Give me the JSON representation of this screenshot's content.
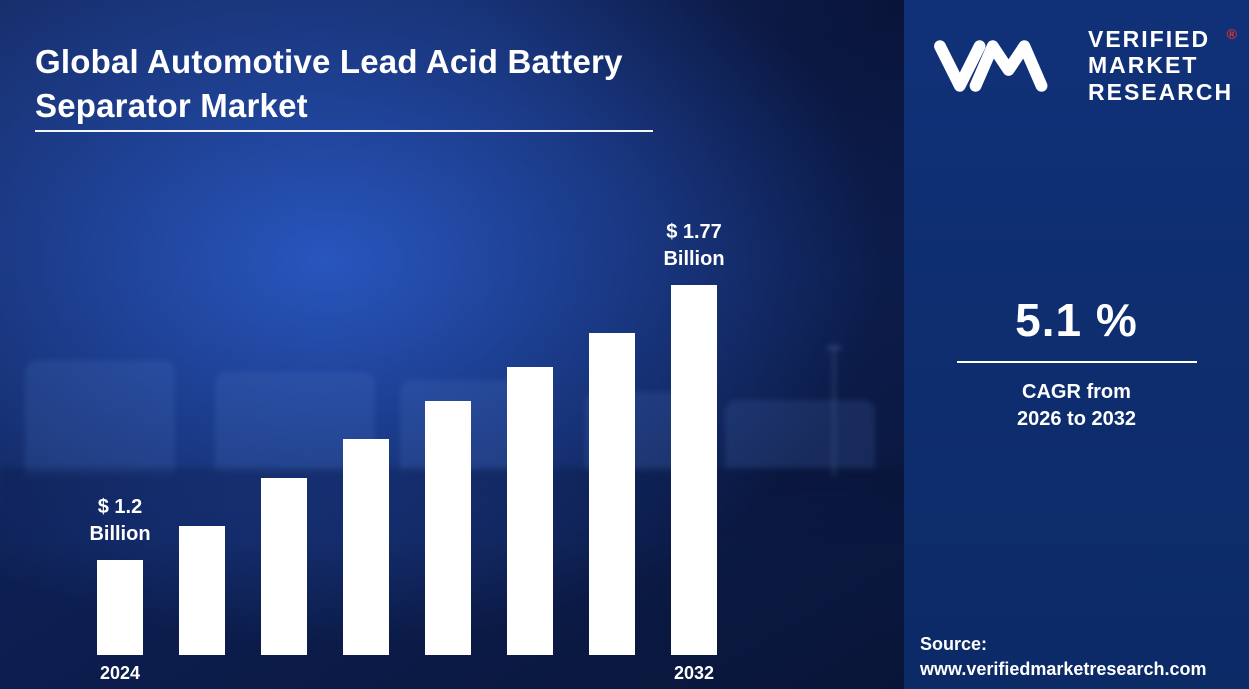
{
  "title": {
    "line1": "Global Automotive Lead Acid Battery",
    "line2": "Separator Market"
  },
  "logo": {
    "brand_line1": "VERIFIED",
    "brand_line2": "MARKET",
    "brand_line3": "RESEARCH",
    "registered_mark": "®"
  },
  "stats": {
    "cagr_value": "5.1 %",
    "cagr_line1": "CAGR from",
    "cagr_line2": "2026 to 2032"
  },
  "source": {
    "label": "Source:",
    "url": "www.verifiedmarketresearch.com"
  },
  "colors": {
    "accent_red": "#e8302a",
    "bar_white": "#ffffff",
    "panel_blue": "#0d2d6e"
  },
  "chart_data": {
    "type": "bar",
    "title": "Global Automotive Lead Acid Battery Separator Market",
    "unit": "USD Billion",
    "values": [
      1.2,
      1.27,
      1.37,
      1.45,
      1.53,
      1.6,
      1.67,
      1.77
    ],
    "ylim": [
      1.2,
      1.77
    ],
    "bar_color": "#ffffff",
    "annotations": {
      "0": "$ 1.2\nBillion",
      "7": "$ 1.77\nBillion"
    },
    "year_labels": {
      "0": "2024",
      "7": "2032"
    },
    "legend": "none",
    "grid": "off"
  }
}
